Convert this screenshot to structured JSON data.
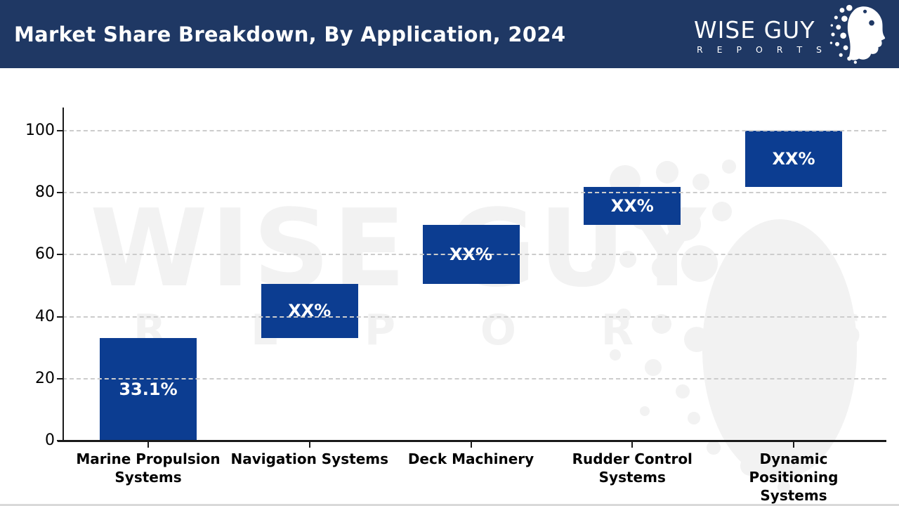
{
  "header": {
    "title": "Market Share Breakdown, By Application, 2024",
    "bg_color": "#1f3864",
    "logo": {
      "wordmark": "WISE GUY",
      "subtext": "R E P O R T S"
    }
  },
  "watermark": {
    "line1": "WISE GUY",
    "line2": "R E P O R T S"
  },
  "chart_data": {
    "type": "bar",
    "subtype": "waterfall",
    "title": "Market Share Breakdown, By Application, 2024",
    "categories": [
      "Marine Propulsion Systems",
      "Navigation Systems",
      "Deck Machinery",
      "Rudder Control Systems",
      "Dynamic Positioning Systems"
    ],
    "category_label_lines": [
      [
        "Marine Propulsion",
        "Systems"
      ],
      [
        "Navigation Systems"
      ],
      [
        "Deck Machinery"
      ],
      [
        "Rudder Control",
        "Systems"
      ],
      [
        "Dynamic",
        "Positioning",
        "Systems"
      ]
    ],
    "segments": [
      {
        "category": "Marine Propulsion Systems",
        "label": "33.1%",
        "start": 0,
        "end": 33.1
      },
      {
        "category": "Navigation Systems",
        "label": "XX%",
        "start": 33.1,
        "end": 50.6
      },
      {
        "category": "Deck Machinery",
        "label": "XX%",
        "start": 50.6,
        "end": 69.6
      },
      {
        "category": "Rudder Control Systems",
        "label": "XX%",
        "start": 69.6,
        "end": 81.8
      },
      {
        "category": "Dynamic Positioning Systems",
        "label": "XX%",
        "start": 81.8,
        "end": 100
      }
    ],
    "ylim": [
      0,
      107
    ],
    "yticks": [
      0,
      20,
      40,
      60,
      80,
      100
    ],
    "xlabel": "",
    "ylabel": "",
    "grid": "horizontal-dashed",
    "legend": "none",
    "bar_color": "#0c3d91",
    "value_label_color": "#ffffff",
    "grid_color": "#cccccc",
    "axis_color": "#1a1a1a"
  }
}
